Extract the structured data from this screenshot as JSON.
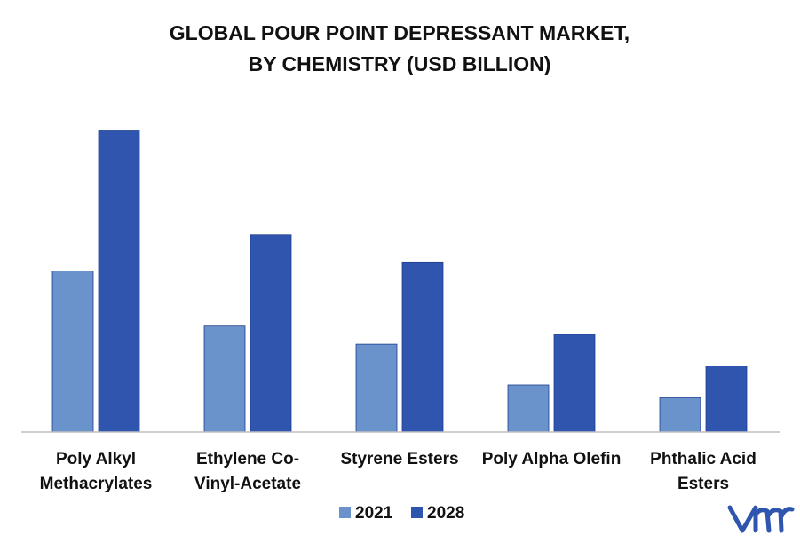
{
  "chart_data": {
    "type": "bar",
    "title": [
      "GLOBAL POUR POINT DEPRESSANT MARKET,",
      "BY CHEMISTRY (USD BILLION)"
    ],
    "categories": [
      [
        "Poly Alkyl",
        "Methacrylates"
      ],
      [
        "Ethylene Co-",
        "Vinyl-Acetate"
      ],
      [
        "Styrene Esters"
      ],
      [
        "Poly Alpha Olefin"
      ],
      [
        "Phthalic Acid",
        "Esters"
      ]
    ],
    "series": [
      {
        "name": "2021",
        "color": "#6a93cc",
        "values": [
          178,
          118,
          97,
          52,
          38
        ]
      },
      {
        "name": "2028",
        "color": "#2f55ae",
        "values": [
          333,
          218,
          188,
          108,
          73
        ]
      }
    ],
    "xlabel": "",
    "ylabel": "",
    "ylim": [
      0,
      360
    ],
    "grid": false,
    "axis_visible": false,
    "legend": "bottom-center"
  },
  "logo": {
    "text": "vmr",
    "color": "#2f55ae"
  }
}
